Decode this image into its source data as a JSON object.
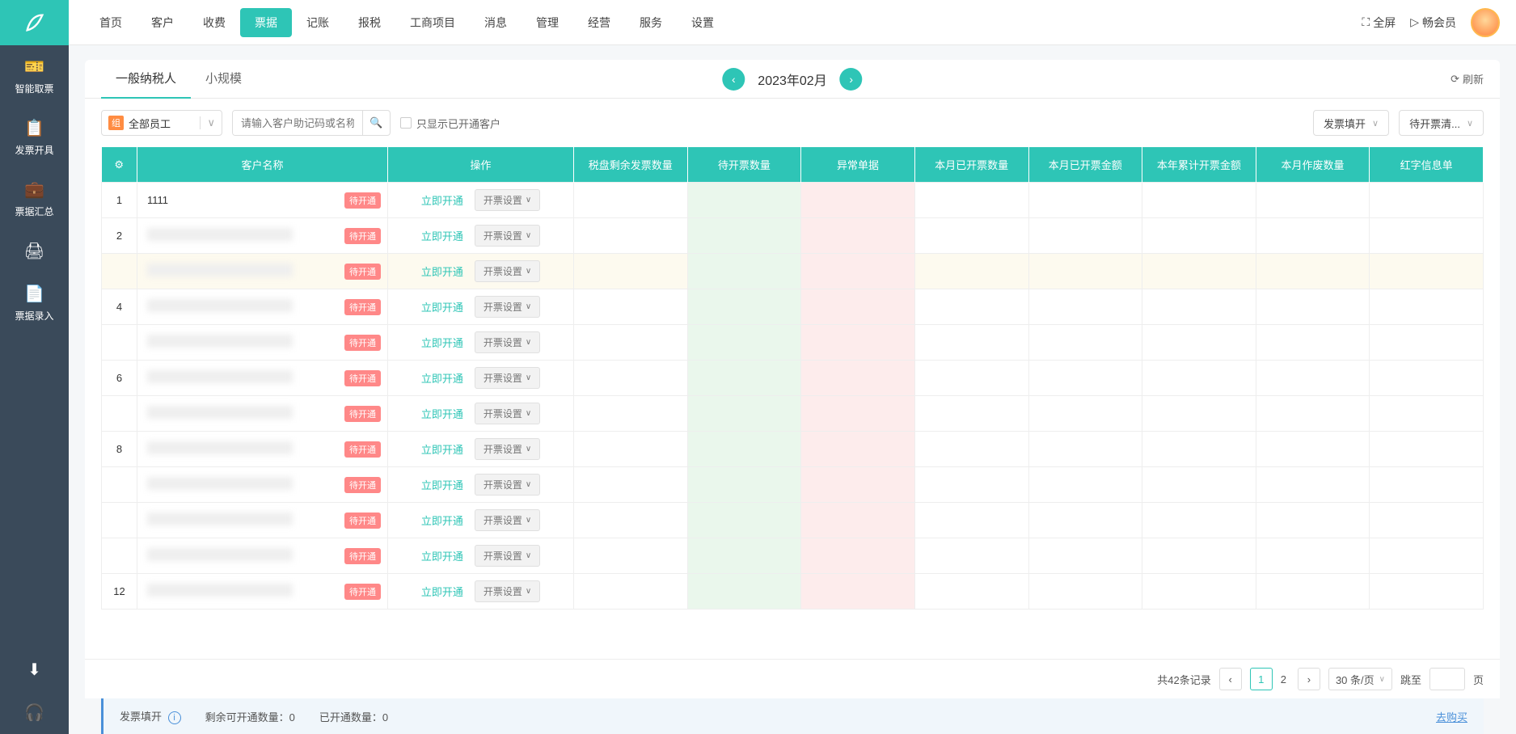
{
  "colors": {
    "primary": "#2ec5b6",
    "sidebar_bg": "#3a4a5a",
    "badge_orange": "#ff8c42",
    "badge_red": "#ff8888",
    "cell_green": "#eaf7ec",
    "cell_pink": "#fdecec",
    "footer_bg": "#f0f6fb",
    "footer_accent": "#4a90d9"
  },
  "topnav": {
    "items": [
      "首页",
      "客户",
      "收费",
      "票据",
      "记账",
      "报税",
      "工商项目",
      "消息",
      "管理",
      "经营",
      "服务",
      "设置"
    ],
    "active_index": 3,
    "fullscreen": "全屏",
    "member": "畅会员"
  },
  "sidebar": {
    "items": [
      {
        "label": "智能取票",
        "icon": "🎫"
      },
      {
        "label": "发票开具",
        "icon": "📋"
      },
      {
        "label": "票据汇总",
        "icon": "💼"
      },
      {
        "label": "",
        "icon": "🖨"
      },
      {
        "label": "票据录入",
        "icon": "📄"
      }
    ],
    "bottom": [
      {
        "icon": "⬇"
      },
      {
        "icon": "🎧"
      }
    ]
  },
  "tabs": {
    "items": [
      "一般纳税人",
      "小规模"
    ],
    "active_index": 0
  },
  "date": {
    "text": "2023年02月"
  },
  "refresh_label": "刷新",
  "filter": {
    "emp_badge": "组",
    "emp_label": "全部员工",
    "search_placeholder": "请输入客户助记码或名称",
    "show_opened_label": "只显示已开通客户",
    "btn_fill": "发票填开",
    "btn_pending": "待开票清..."
  },
  "table": {
    "headers": [
      "⚙",
      "客户名称",
      "操作",
      "税盘剩余发票数量",
      "待开票数量",
      "异常单据",
      "本月已开票数量",
      "本月已开票金额",
      "本年累计开票金额",
      "本月作废数量",
      "红字信息单"
    ],
    "action_open": "立即开通",
    "action_settings": "开票设置",
    "badge_pending": "待开通",
    "rows": [
      {
        "idx": "1",
        "name": "1111",
        "blur": false
      },
      {
        "idx": "2",
        "name": "",
        "blur": true
      },
      {
        "idx": "",
        "name": "",
        "blur": true,
        "hover": true
      },
      {
        "idx": "4",
        "name": "",
        "blur": true
      },
      {
        "idx": "",
        "name": "",
        "blur": true
      },
      {
        "idx": "6",
        "name": "",
        "blur": true
      },
      {
        "idx": "",
        "name": "",
        "blur": true
      },
      {
        "idx": "8",
        "name": "",
        "blur": true
      },
      {
        "idx": "",
        "name": "",
        "blur": true
      },
      {
        "idx": "",
        "name": "",
        "blur": true
      },
      {
        "idx": "",
        "name": "",
        "blur": true
      },
      {
        "idx": "12",
        "name": "",
        "blur": true
      }
    ]
  },
  "pager": {
    "total_text": "共42条记录",
    "pages": [
      "1",
      "2"
    ],
    "active_page": 0,
    "per_page": "30 条/页",
    "jump_label": "跳至",
    "page_suffix": "页"
  },
  "footer": {
    "title": "发票填开",
    "remain_label": "剩余可开通数量：",
    "remain_value": "0",
    "opened_label": "已开通数量：",
    "opened_value": "0",
    "buy_link": "去购买"
  }
}
